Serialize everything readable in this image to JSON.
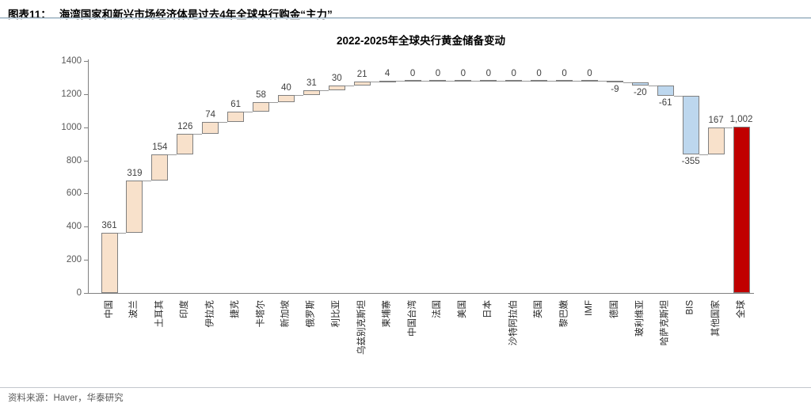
{
  "header": {
    "tag": "图表11：",
    "title": "海湾国家和新兴市场经济体是过去4年全球央行购金“主力”"
  },
  "source": "资料来源：Haver，华泰研究",
  "chart_data": {
    "type": "bar",
    "subtype": "waterfall",
    "title": "2022-2025年全球央行黄金储备变动",
    "xlabel": "",
    "ylabel": "",
    "ylim": [
      0,
      1400
    ],
    "yticks": [
      0,
      200,
      400,
      600,
      800,
      1000,
      1200,
      1400
    ],
    "grid": false,
    "legend": false,
    "colors": {
      "increase": "#F8E1CB",
      "decrease": "#BDD7EE",
      "total": "#C00000",
      "border": "#808080",
      "zero_dash": "#7f7f7f",
      "connector": "#9b9b9b"
    },
    "items": [
      {
        "label": "中国",
        "value": 361,
        "display": "361",
        "role": "increase"
      },
      {
        "label": "波兰",
        "value": 319,
        "display": "319",
        "role": "increase"
      },
      {
        "label": "土耳其",
        "value": 154,
        "display": "154",
        "role": "increase"
      },
      {
        "label": "印度",
        "value": 126,
        "display": "126",
        "role": "increase"
      },
      {
        "label": "伊拉克",
        "value": 74,
        "display": "74",
        "role": "increase"
      },
      {
        "label": "捷克",
        "value": 61,
        "display": "61",
        "role": "increase"
      },
      {
        "label": "卡塔尔",
        "value": 58,
        "display": "58",
        "role": "increase"
      },
      {
        "label": "新加坡",
        "value": 40,
        "display": "40",
        "role": "increase"
      },
      {
        "label": "俄罗斯",
        "value": 31,
        "display": "31",
        "role": "increase"
      },
      {
        "label": "利比亚",
        "value": 30,
        "display": "30",
        "role": "increase"
      },
      {
        "label": "乌兹别克斯坦",
        "value": 21,
        "display": "21",
        "role": "increase"
      },
      {
        "label": "柬埔寨",
        "value": 4,
        "display": "4",
        "role": "increase"
      },
      {
        "label": "中国台湾",
        "value": 0,
        "display": "0",
        "role": "zero"
      },
      {
        "label": "法国",
        "value": 0,
        "display": "0",
        "role": "zero"
      },
      {
        "label": "美国",
        "value": 0,
        "display": "0",
        "role": "zero"
      },
      {
        "label": "日本",
        "value": 0,
        "display": "0",
        "role": "zero"
      },
      {
        "label": "沙特阿拉伯",
        "value": 0,
        "display": "0",
        "role": "zero"
      },
      {
        "label": "英国",
        "value": 0,
        "display": "0",
        "role": "zero"
      },
      {
        "label": "黎巴嫩",
        "value": 0,
        "display": "0",
        "role": "zero"
      },
      {
        "label": "IMF",
        "value": 0,
        "display": "0",
        "role": "zero"
      },
      {
        "label": "德国",
        "value": -9,
        "display": "-9",
        "role": "decrease"
      },
      {
        "label": "玻利维亚",
        "value": -20,
        "display": "-20",
        "role": "decrease"
      },
      {
        "label": "哈萨克斯坦",
        "value": -61,
        "display": "-61",
        "role": "decrease"
      },
      {
        "label": "BIS",
        "value": -355,
        "display": "-355",
        "role": "decrease"
      },
      {
        "label": "其他国家",
        "value": 167,
        "display": "167",
        "role": "increase"
      },
      {
        "label": "全球",
        "value": 1002,
        "display": "1,002",
        "role": "total"
      }
    ]
  }
}
